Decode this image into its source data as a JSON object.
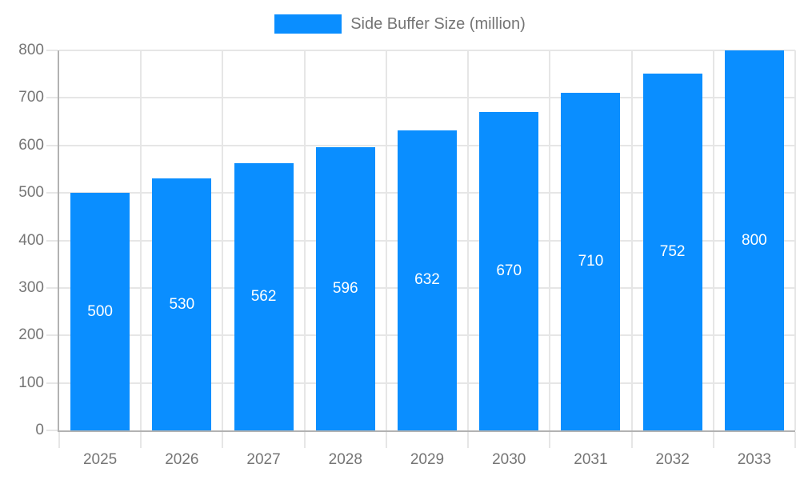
{
  "chart_data": {
    "type": "bar",
    "title": "",
    "legend": "Side Buffer Size (million)",
    "legend_position": "top",
    "categories": [
      "2025",
      "2026",
      "2027",
      "2028",
      "2029",
      "2030",
      "2031",
      "2032",
      "2033"
    ],
    "values": [
      500,
      530,
      562,
      596,
      632,
      670,
      710,
      752,
      800
    ],
    "xlabel": "",
    "ylabel": "",
    "ylim": [
      0,
      800
    ],
    "yticks": [
      0,
      100,
      200,
      300,
      400,
      500,
      600,
      700,
      800
    ],
    "grid": true,
    "colors": {
      "bar": "#0a8eff",
      "bar_label": "#ffffff",
      "axis_text": "#757575",
      "grid_line": "#e6e6e6",
      "axis_line": "#b2b2b2"
    }
  }
}
